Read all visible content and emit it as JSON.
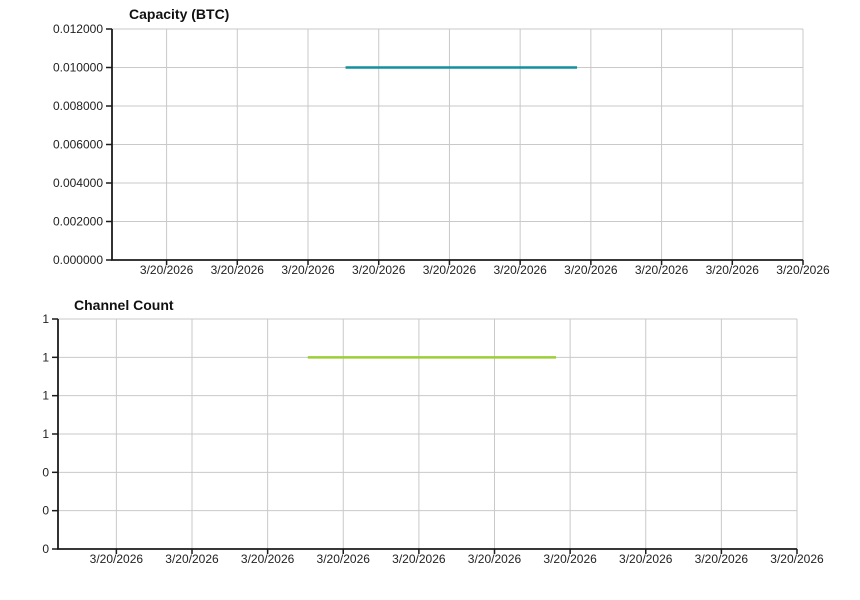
{
  "styles": {
    "background": "#ffffff",
    "axis_color": "#1b1b1b",
    "grid_color": "#c9c9c9",
    "text_color": "#222222",
    "capacity_line_color": "#12919D",
    "channel_line_color": "#9CCE38"
  },
  "chart_data": [
    {
      "type": "line",
      "title": "Capacity (BTC)",
      "xlabel": "",
      "ylabel": "",
      "grid": true,
      "legend": "none",
      "y_axis": {
        "min": 0,
        "max": 0.012,
        "tick_values": [
          0.012,
          0.01,
          0.008,
          0.006,
          0.004,
          0.002,
          0.0
        ],
        "tick_labels": [
          "0.012000",
          "0.010000",
          "0.008000",
          "0.006000",
          "0.004000",
          "0.002000",
          "0.000000"
        ]
      },
      "x_axis": {
        "tick_labels": [
          "3/20/2026",
          "3/20/2026",
          "3/20/2026",
          "3/20/2026",
          "3/20/2026",
          "3/20/2026",
          "3/20/2026",
          "3/20/2026",
          "3/20/2026",
          "3/20/2026"
        ]
      },
      "series": [
        {
          "name": "Capacity (BTC)",
          "color": "#12919D",
          "points": [
            {
              "x_frac": 0.338,
              "y": 0.01
            },
            {
              "x_frac": 0.673,
              "y": 0.01
            }
          ]
        }
      ]
    },
    {
      "type": "line",
      "title": "Channel Count",
      "xlabel": "",
      "ylabel": "",
      "grid": true,
      "legend": "none",
      "y_axis": {
        "min": 0,
        "max": 1.2,
        "tick_values": [
          1.2,
          1.0,
          0.8,
          0.6,
          0.4,
          0.2,
          0.0
        ],
        "tick_labels": [
          "1",
          "1",
          "1",
          "1",
          "0",
          "0",
          "0"
        ]
      },
      "x_axis": {
        "tick_labels": [
          "3/20/2026",
          "3/20/2026",
          "3/20/2026",
          "3/20/2026",
          "3/20/2026",
          "3/20/2026",
          "3/20/2026",
          "3/20/2026",
          "3/20/2026",
          "3/20/2026"
        ]
      },
      "series": [
        {
          "name": "Channel Count",
          "color": "#9CCE38",
          "points": [
            {
              "x_frac": 0.338,
              "y": 1
            },
            {
              "x_frac": 0.674,
              "y": 1
            }
          ]
        }
      ]
    }
  ]
}
